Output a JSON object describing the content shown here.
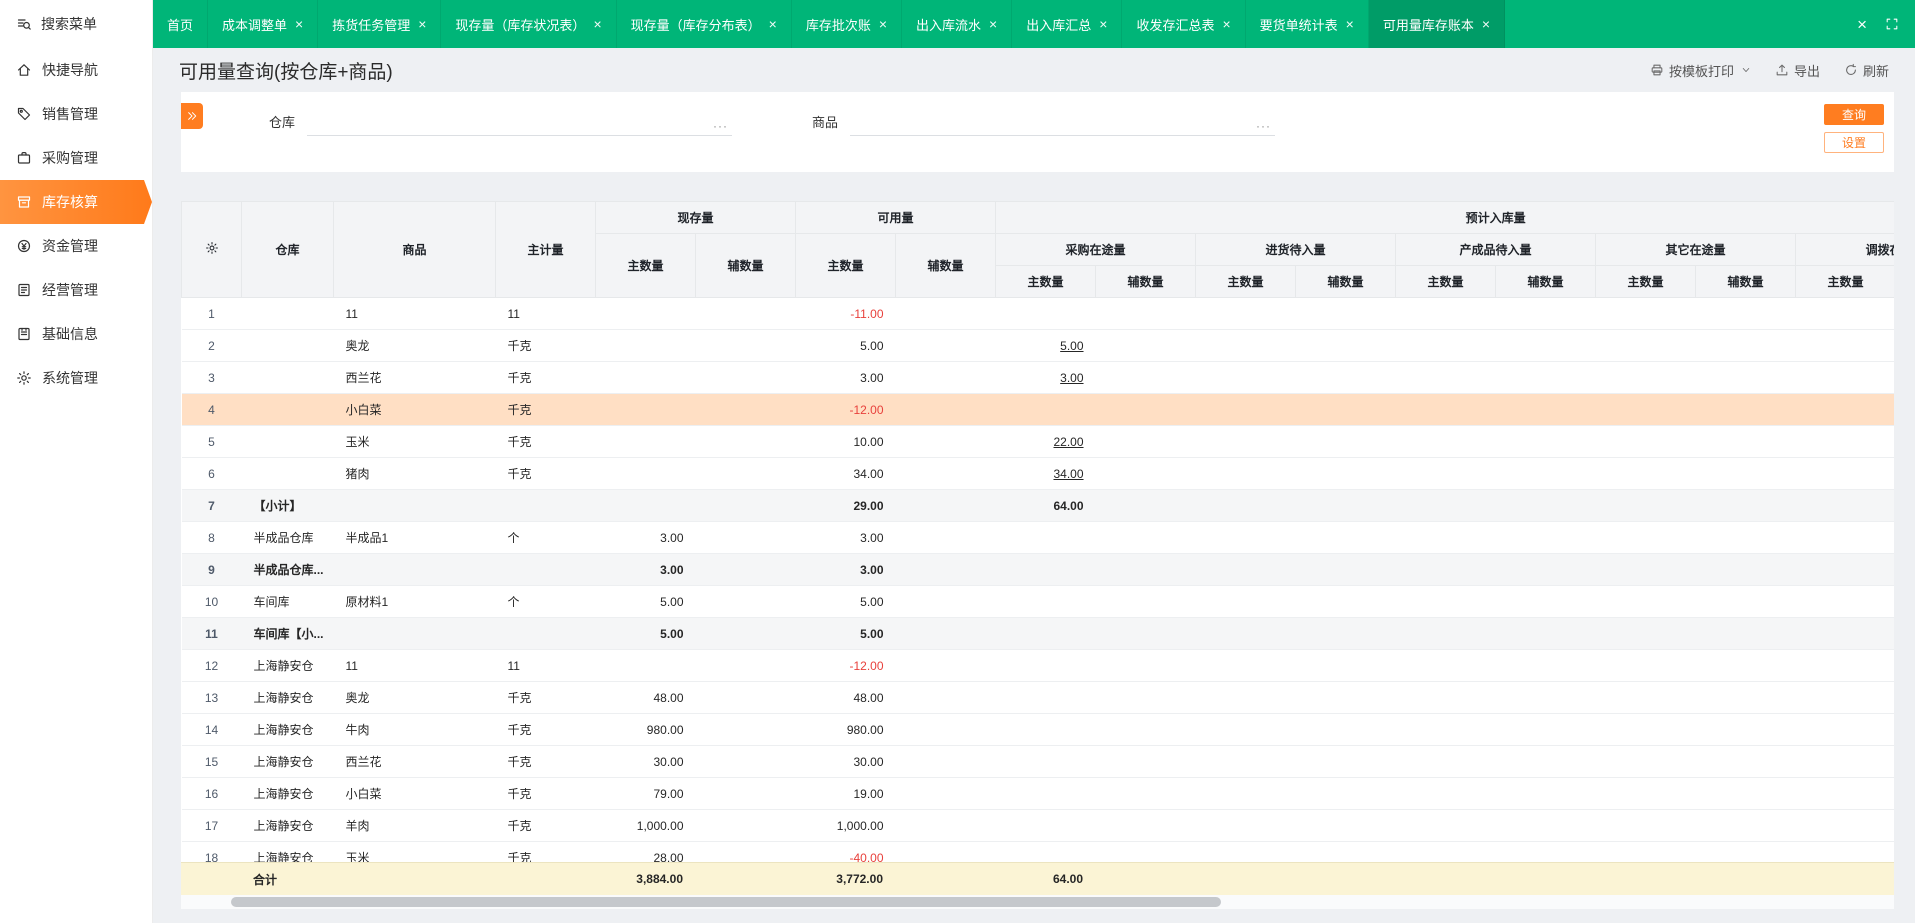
{
  "colors": {
    "topbar_green": "#00b578",
    "active_tab_green": "#009c67",
    "accent_orange": "#ff7d20",
    "negative_red": "#e8413c",
    "selected_row": "#ffdfc4",
    "total_row_bg": "#fbf4d5"
  },
  "sidebar": {
    "search_label": "搜索菜单",
    "items": [
      {
        "key": "quick-nav",
        "label": "快捷导航",
        "icon": "home",
        "active": false
      },
      {
        "key": "sales",
        "label": "销售管理",
        "icon": "tag",
        "active": false
      },
      {
        "key": "purchase",
        "label": "采购管理",
        "icon": "briefcase",
        "active": false
      },
      {
        "key": "inventory",
        "label": "库存核算",
        "icon": "archive",
        "active": true
      },
      {
        "key": "funds",
        "label": "资金管理",
        "icon": "money",
        "active": false
      },
      {
        "key": "business",
        "label": "经营管理",
        "icon": "clipboard",
        "active": false
      },
      {
        "key": "basic-info",
        "label": "基础信息",
        "icon": "doc",
        "active": false
      },
      {
        "key": "system",
        "label": "系统管理",
        "icon": "gear",
        "active": false
      }
    ]
  },
  "tabs": [
    {
      "key": "home",
      "label": "首页",
      "closable": false,
      "active": false
    },
    {
      "key": "cost-adjust",
      "label": "成本调整单",
      "closable": true,
      "active": false
    },
    {
      "key": "picking-task",
      "label": "拣货任务管理",
      "closable": true,
      "active": false
    },
    {
      "key": "stock-status",
      "label": "现存量（库存状况表）",
      "closable": true,
      "active": false
    },
    {
      "key": "stock-distribution",
      "label": "现存量（库存分布表）",
      "closable": true,
      "active": false
    },
    {
      "key": "batch-ledger",
      "label": "库存批次账",
      "closable": true,
      "active": false
    },
    {
      "key": "inout-flow",
      "label": "出入库流水",
      "closable": true,
      "active": false
    },
    {
      "key": "inout-summary",
      "label": "出入库汇总",
      "closable": true,
      "active": false
    },
    {
      "key": "recv-send-summary",
      "label": "收发存汇总表",
      "closable": true,
      "active": false
    },
    {
      "key": "requisition-stats",
      "label": "要货单统计表",
      "closable": true,
      "active": false
    },
    {
      "key": "available-ledger",
      "label": "可用量库存账本",
      "closable": true,
      "active": true
    }
  ],
  "page_header": {
    "title": "可用量查询(按仓库+商品)",
    "print_label": "按模板打印",
    "export_label": "导出",
    "refresh_label": "刷新"
  },
  "filter": {
    "warehouse_label": "仓库",
    "warehouse_value": "",
    "product_label": "商品",
    "product_value": "",
    "picker_ellipsis": "···",
    "query_label": "查询",
    "settings_label": "设置"
  },
  "table": {
    "headers": {
      "warehouse": "仓库",
      "product": "商品",
      "unit": "主计量",
      "current_stock": "现存量",
      "available": "可用量",
      "expected_inbound": "预计入库量",
      "purchase_transit": "采购在途量",
      "incoming_pending": "进货待入量",
      "finished_pending": "产成品待入量",
      "other_transit": "其它在途量",
      "allocation_transit": "调拨在途量",
      "main_qty": "主数量",
      "aux_qty": "辅数量"
    },
    "columns": [
      "no",
      "warehouse",
      "product",
      "unit",
      "cur_main",
      "cur_aux",
      "avail_main",
      "avail_aux",
      "po_main",
      "po_aux",
      "in_main",
      "in_aux",
      "fg_main",
      "fg_aux",
      "other_main",
      "other_aux",
      "alloc_main",
      "alloc_aux"
    ],
    "rows": [
      {
        "type": "data",
        "cells": [
          "1",
          "",
          "11",
          "11",
          "",
          "",
          "-11.00",
          "",
          ""
        ],
        "neg": [
          6
        ]
      },
      {
        "type": "data",
        "cells": [
          "2",
          "",
          "奥龙",
          "千克",
          "",
          "",
          "5.00",
          "",
          "5.00"
        ],
        "link": [
          8
        ]
      },
      {
        "type": "data",
        "cells": [
          "3",
          "",
          "西兰花",
          "千克",
          "",
          "",
          "3.00",
          "",
          "3.00"
        ],
        "link": [
          8
        ]
      },
      {
        "type": "selected",
        "cells": [
          "4",
          "",
          "小白菜",
          "千克",
          "",
          "",
          "-12.00",
          "",
          ""
        ],
        "neg": [
          6
        ]
      },
      {
        "type": "data",
        "cells": [
          "5",
          "",
          "玉米",
          "千克",
          "",
          "",
          "10.00",
          "",
          "22.00"
        ],
        "link": [
          8
        ]
      },
      {
        "type": "data",
        "cells": [
          "6",
          "",
          "猪肉",
          "千克",
          "",
          "",
          "34.00",
          "",
          "34.00"
        ],
        "link": [
          8
        ]
      },
      {
        "type": "subtotal",
        "cells": [
          "7",
          "【小计】",
          "",
          "",
          "",
          "",
          "29.00",
          "",
          "64.00"
        ]
      },
      {
        "type": "data",
        "cells": [
          "8",
          "半成品仓库",
          "半成品1",
          "个",
          "3.00",
          "",
          "3.00",
          "",
          ""
        ]
      },
      {
        "type": "subtotal",
        "cells": [
          "9",
          "半成品仓库...",
          "",
          "",
          "3.00",
          "",
          "3.00",
          "",
          ""
        ]
      },
      {
        "type": "data",
        "cells": [
          "10",
          "车间库",
          "原材料1",
          "个",
          "5.00",
          "",
          "5.00",
          "",
          ""
        ]
      },
      {
        "type": "subtotal",
        "cells": [
          "11",
          "车间库【小...",
          "",
          "",
          "5.00",
          "",
          "5.00",
          "",
          ""
        ]
      },
      {
        "type": "data",
        "cells": [
          "12",
          "上海静安仓",
          "11",
          "11",
          "",
          "",
          "-12.00",
          "",
          ""
        ],
        "neg": [
          6
        ]
      },
      {
        "type": "data",
        "cells": [
          "13",
          "上海静安仓",
          "奥龙",
          "千克",
          "48.00",
          "",
          "48.00",
          "",
          ""
        ]
      },
      {
        "type": "data",
        "cells": [
          "14",
          "上海静安仓",
          "牛肉",
          "千克",
          "980.00",
          "",
          "980.00",
          "",
          ""
        ]
      },
      {
        "type": "data",
        "cells": [
          "15",
          "上海静安仓",
          "西兰花",
          "千克",
          "30.00",
          "",
          "30.00",
          "",
          ""
        ]
      },
      {
        "type": "data",
        "cells": [
          "16",
          "上海静安仓",
          "小白菜",
          "千克",
          "79.00",
          "",
          "19.00",
          "",
          ""
        ]
      },
      {
        "type": "data",
        "cells": [
          "17",
          "上海静安仓",
          "羊肉",
          "千克",
          "1,000.00",
          "",
          "1,000.00",
          "",
          ""
        ]
      },
      {
        "type": "data",
        "cells": [
          "18",
          "上海静安仓",
          "玉米",
          "千克",
          "28.00",
          "",
          "-40.00",
          "",
          ""
        ],
        "neg": [
          6
        ]
      }
    ],
    "total_row": {
      "cells": [
        "",
        "合计",
        "",
        "",
        "3,884.00",
        "",
        "3,772.00",
        "",
        "64.00"
      ]
    }
  }
}
